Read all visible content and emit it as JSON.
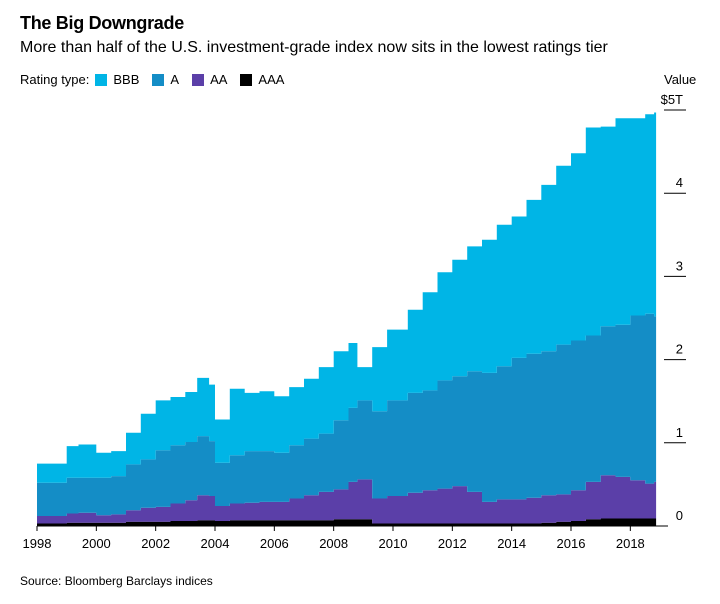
{
  "title": "The Big Downgrade",
  "subtitle": "More than half of the U.S. investment-grade index now sits in the lowest ratings tier",
  "legend_label": "Rating type:",
  "value_label": "Value",
  "source": "Source: Bloomberg Barclays indices",
  "chart_data": {
    "type": "area",
    "stacked": true,
    "xlim": [
      1998,
      2019
    ],
    "ylim": [
      0,
      5
    ],
    "x_ticks": [
      1998,
      2000,
      2002,
      2004,
      2006,
      2008,
      2010,
      2012,
      2014,
      2016,
      2018
    ],
    "y_ticks": [
      {
        "value": 0,
        "label": "0"
      },
      {
        "value": 1,
        "label": "1"
      },
      {
        "value": 2,
        "label": "2"
      },
      {
        "value": 3,
        "label": "3"
      },
      {
        "value": 4,
        "label": "4"
      },
      {
        "value": 5,
        "label": "$5T"
      }
    ],
    "y_axis_position": "right",
    "legend_position": "top-left",
    "x": [
      1998.0,
      1999.0,
      1999.4,
      2000.0,
      2000.5,
      2001.0,
      2001.5,
      2002.0,
      2002.5,
      2003.0,
      2003.4,
      2003.8,
      2004.0,
      2004.5,
      2005.0,
      2005.5,
      2006.0,
      2006.5,
      2007.0,
      2007.5,
      2008.0,
      2008.5,
      2008.8,
      2009.3,
      2009.8,
      2010.5,
      2011.0,
      2011.5,
      2012.0,
      2012.5,
      2013.0,
      2013.5,
      2014.0,
      2014.5,
      2015.0,
      2015.5,
      2016.0,
      2016.5,
      2017.0,
      2017.5,
      2018.0,
      2018.5,
      2018.8
    ],
    "series": [
      {
        "name": "AAA",
        "color": "#000000",
        "values": [
          0.03,
          0.04,
          0.04,
          0.04,
          0.04,
          0.05,
          0.05,
          0.05,
          0.06,
          0.06,
          0.07,
          0.07,
          0.06,
          0.07,
          0.07,
          0.07,
          0.07,
          0.07,
          0.07,
          0.07,
          0.08,
          0.08,
          0.08,
          0.03,
          0.03,
          0.03,
          0.03,
          0.03,
          0.03,
          0.03,
          0.03,
          0.03,
          0.03,
          0.03,
          0.04,
          0.05,
          0.06,
          0.08,
          0.09,
          0.09,
          0.09,
          0.09,
          0.09
        ]
      },
      {
        "name": "AA",
        "color": "#5b3fa8",
        "values": [
          0.09,
          0.11,
          0.12,
          0.09,
          0.1,
          0.14,
          0.17,
          0.18,
          0.21,
          0.25,
          0.3,
          0.29,
          0.18,
          0.2,
          0.21,
          0.22,
          0.22,
          0.26,
          0.3,
          0.34,
          0.36,
          0.45,
          0.48,
          0.3,
          0.33,
          0.37,
          0.4,
          0.42,
          0.45,
          0.38,
          0.26,
          0.29,
          0.29,
          0.31,
          0.33,
          0.33,
          0.37,
          0.45,
          0.52,
          0.5,
          0.46,
          0.42,
          0.44
        ]
      },
      {
        "name": "A",
        "color": "#148dc6",
        "values": [
          0.4,
          0.43,
          0.42,
          0.45,
          0.46,
          0.55,
          0.58,
          0.68,
          0.7,
          0.7,
          0.71,
          0.66,
          0.52,
          0.58,
          0.62,
          0.61,
          0.59,
          0.64,
          0.68,
          0.7,
          0.83,
          0.89,
          0.95,
          1.05,
          1.15,
          1.2,
          1.2,
          1.3,
          1.32,
          1.45,
          1.55,
          1.6,
          1.7,
          1.73,
          1.73,
          1.8,
          1.8,
          1.76,
          1.79,
          1.83,
          1.98,
          2.04,
          1.99
        ]
      },
      {
        "name": "BBB",
        "color": "#00b5e6",
        "values": [
          0.23,
          0.38,
          0.4,
          0.3,
          0.3,
          0.38,
          0.55,
          0.6,
          0.58,
          0.6,
          0.7,
          0.68,
          0.52,
          0.8,
          0.7,
          0.72,
          0.68,
          0.7,
          0.72,
          0.8,
          0.83,
          0.78,
          0.4,
          0.77,
          0.85,
          1.0,
          1.18,
          1.3,
          1.4,
          1.5,
          1.6,
          1.7,
          1.7,
          1.85,
          2.0,
          2.15,
          2.25,
          2.5,
          2.4,
          2.48,
          2.37,
          2.4,
          2.45
        ]
      }
    ]
  }
}
